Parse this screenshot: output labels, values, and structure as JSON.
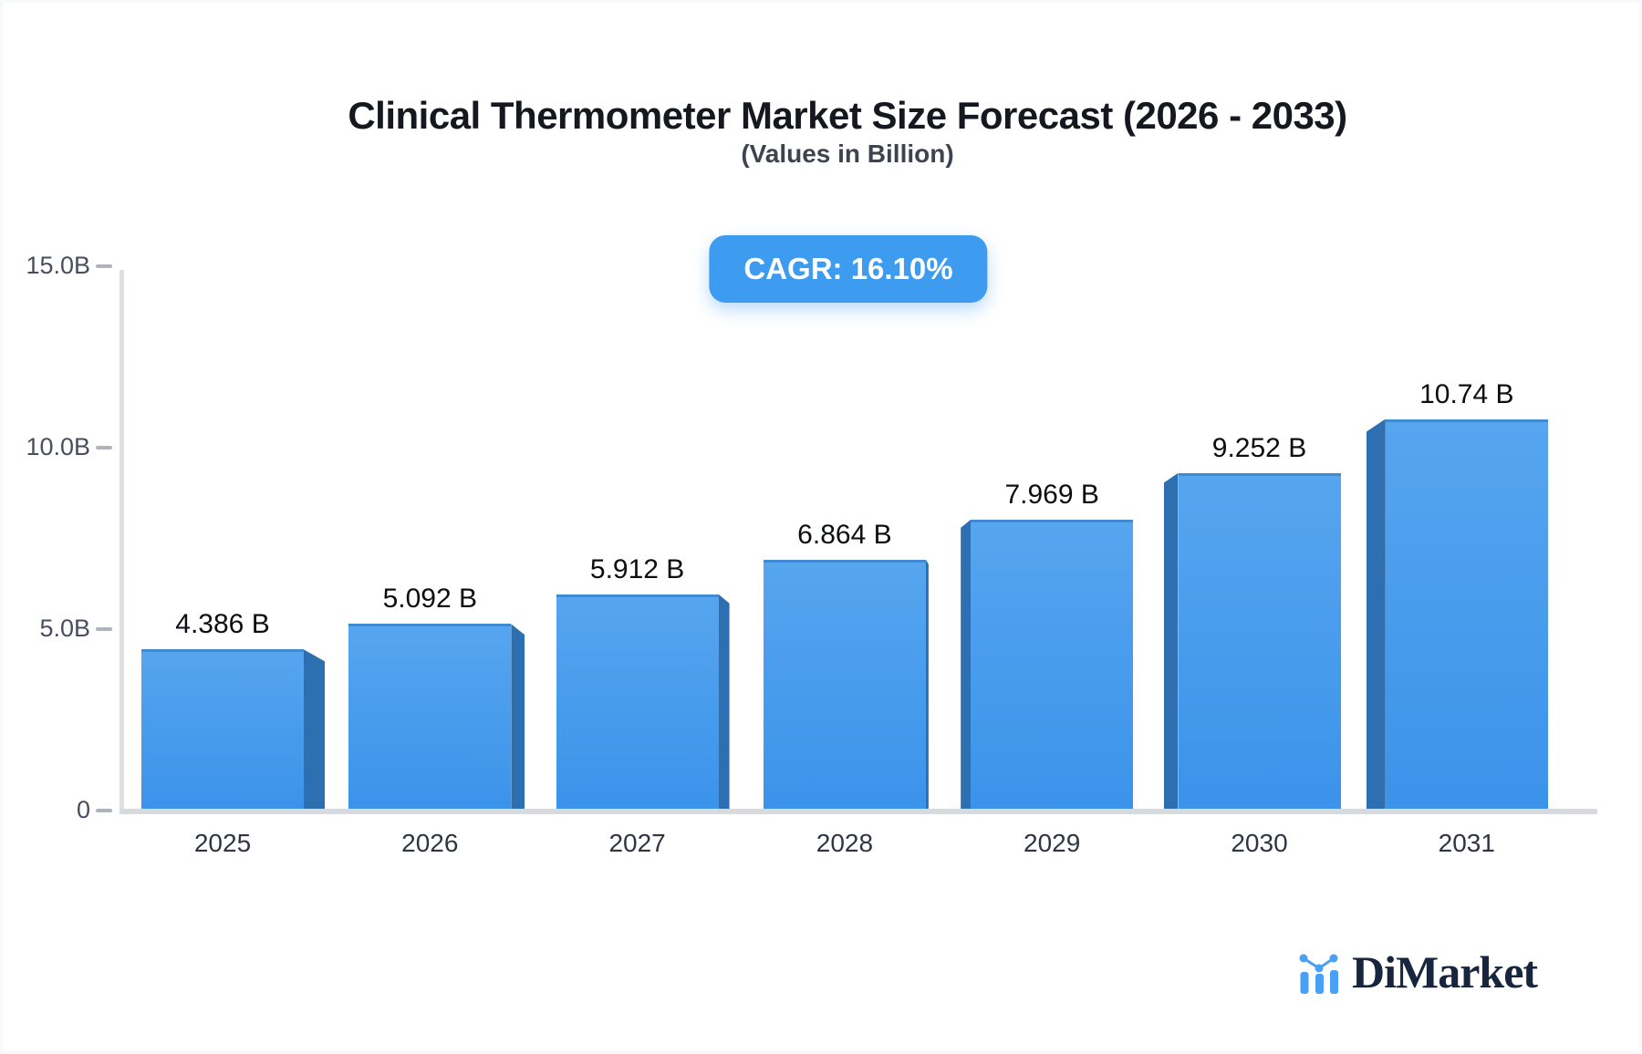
{
  "header": {
    "title": "Clinical Thermometer Market Size Forecast (2026 - 2033)",
    "subtitle": "(Values in Billion)"
  },
  "badge": {
    "label": "CAGR: 16.10%",
    "bg": "#3d9bf0",
    "text_color": "#ffffff"
  },
  "chart_data": {
    "type": "bar",
    "title": "Clinical Thermometer Market Size Forecast (2026 - 2033)",
    "subtitle": "(Values in Billion)",
    "categories": [
      "2025",
      "2026",
      "2027",
      "2028",
      "2029",
      "2030",
      "2031"
    ],
    "values": [
      4.386,
      5.092,
      5.912,
      6.864,
      7.969,
      9.252,
      10.74
    ],
    "value_labels": [
      "4.386 B",
      "5.092 B",
      "5.912 B",
      "6.864 B",
      "7.969 B",
      "9.252 B",
      "10.74 B"
    ],
    "y_ticks": [
      {
        "value": 15,
        "label": "15.0B"
      },
      {
        "value": 10,
        "label": "10.0B"
      },
      {
        "value": 5,
        "label": "5.0B"
      },
      {
        "value": 0,
        "label": "0"
      }
    ],
    "ylim": [
      0,
      15
    ],
    "unit": "Billion",
    "grid": false,
    "legend": false,
    "colors": {
      "bar_top": "#56a5ef",
      "bar_bottom": "#3b93ea",
      "bar_edge": "#3e8bd3",
      "bar_side": "#2d6fb0",
      "axis": "#d7dade"
    }
  },
  "footer": {
    "logo_text": "DiMarket",
    "logo_icon": "bar-line-chart-icon",
    "logo_text_color": "#18253f",
    "logo_icon_color": "#4aa0f6"
  }
}
